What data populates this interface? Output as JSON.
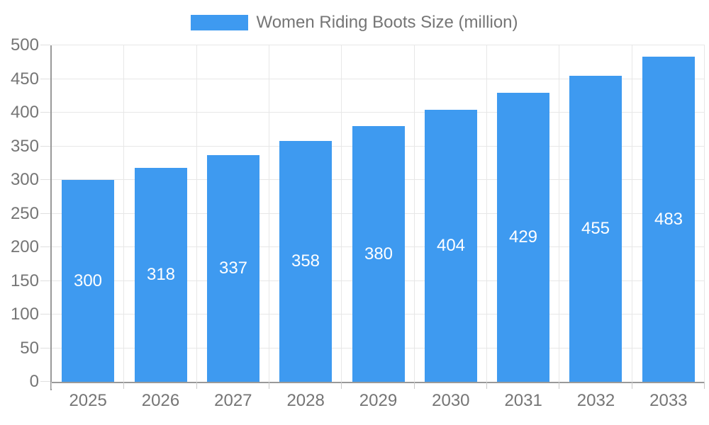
{
  "legend": {
    "label": "Women Riding Boots Size (million)",
    "position": "top-center"
  },
  "colors": {
    "bar": "#3e9af0",
    "grid": "#e7e7e7",
    "axis": "#999999",
    "y_tick": "#e0e0e0",
    "x_tick": "#c9c9c9",
    "axis_label": "#757575",
    "legend_label": "#757575",
    "value_label": "#ffffff",
    "background": "#ffffff"
  },
  "chart_data": {
    "type": "bar",
    "title": "Women Riding Boots Size (million)",
    "categories": [
      "2025",
      "2026",
      "2027",
      "2028",
      "2029",
      "2030",
      "2031",
      "2032",
      "2033"
    ],
    "values": [
      300,
      318,
      337,
      358,
      380,
      404,
      429,
      455,
      483
    ],
    "xlabel": "",
    "ylabel": "",
    "ylim": [
      0,
      500
    ],
    "ytick_step": 50,
    "ytick_labels": [
      "0",
      "50",
      "100",
      "150",
      "200",
      "250",
      "300",
      "350",
      "400",
      "450",
      "500"
    ],
    "grid": true,
    "legend_position": "top",
    "value_labels": "inside-center",
    "bar_fraction": 0.72
  }
}
